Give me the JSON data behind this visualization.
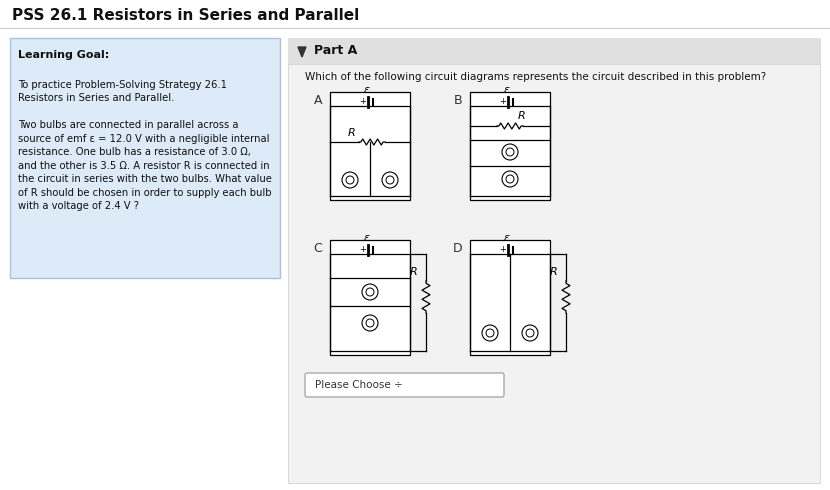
{
  "title": "PSS 26.1 Resistors in Series and Parallel",
  "bg_color": "#ffffff",
  "left_box_color": "#ddeaf7",
  "left_box_border": "#a8c4dc",
  "learning_goal_title": "Learning Goal:",
  "learning_goal_lines": [
    "",
    "To practice Problem-Solving Strategy 26.1",
    "Resistors in Series and Parallel.",
    "",
    "Two bulbs are connected in parallel across a",
    "source of emf ε = 12.0 V with a negligible internal",
    "resistance. One bulb has a resistance of 3.0 Ω,",
    "and the other is 3.5 Ω. A resistor R is connected in",
    "the circuit in series with the two bulbs. What value",
    "of R should be chosen in order to supply each bulb",
    "with a voltage of 2.4 V ?"
  ],
  "part_a_label": "Part A",
  "question_text": "Which of the following circuit diagrams represents the circuit described in this problem?",
  "dropdown_text": "Please Choose ÷",
  "diagram_labels": [
    "A",
    "B",
    "C",
    "D"
  ],
  "title_fontsize": 11,
  "right_bg": "#f2f2f2",
  "right_header_bg": "#e0e0e0"
}
